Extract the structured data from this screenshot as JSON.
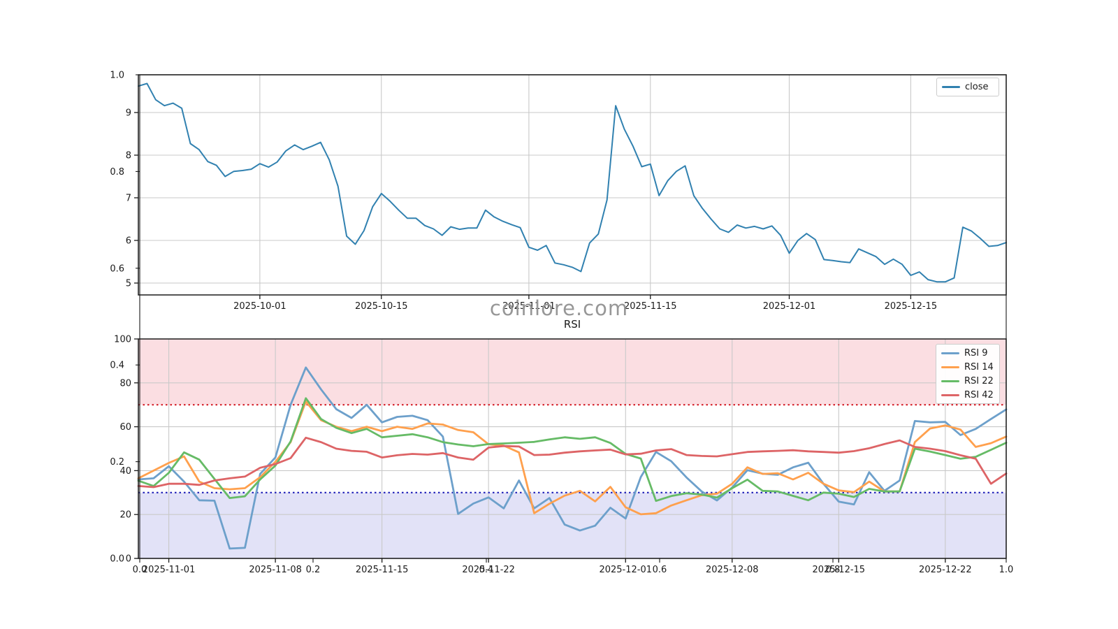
{
  "app": {
    "watermark": "coinlore.com"
  },
  "outer_axis": {
    "x_tick_labels": [
      "0.0",
      "0.2",
      "0.4",
      "0.6",
      "0.8",
      "1.0"
    ],
    "y_tick_labels": [
      "1.0",
      "0.8",
      "0.6",
      "0.4",
      "0.2",
      "0.0"
    ]
  },
  "colors": {
    "close": "#3181b0",
    "rsi9": "#6da0cb",
    "rsi14": "#ffa04d",
    "rsi22": "#66bb66",
    "rsi42": "#dd6466",
    "overbought_band": "#fbdee2",
    "oversold_band": "#e2e2f7",
    "overbought_line": "#d42029",
    "oversold_line": "#2121b8",
    "grid": "#c9c9c9",
    "spine": "#1a1a1a",
    "tick_text": "#1a1a1a",
    "watermark": "#979797"
  },
  "chart_data": [
    {
      "type": "line",
      "title": "",
      "panel": "price",
      "start_date": "2025-09-17",
      "frequency": "daily",
      "legend_position": "upper right",
      "grid": true,
      "ylim": [
        4.72,
        9.89
      ],
      "y_ticks": [
        9,
        8,
        7,
        6,
        5
      ],
      "x_ticks": [
        {
          "index": 14,
          "label": "2025-10-01"
        },
        {
          "index": 28,
          "label": "2025-10-15"
        },
        {
          "index": 45,
          "label": "2025-11-01"
        },
        {
          "index": 59,
          "label": "2025-11-15"
        },
        {
          "index": 75,
          "label": "2025-12-01"
        },
        {
          "index": 89,
          "label": "2025-12-15"
        }
      ],
      "series": [
        {
          "name": "close",
          "color_key": "close",
          "values": [
            9.62,
            9.68,
            9.3,
            9.16,
            9.22,
            9.1,
            8.27,
            8.13,
            7.85,
            7.76,
            7.5,
            7.62,
            7.64,
            7.67,
            7.8,
            7.72,
            7.84,
            8.1,
            8.24,
            8.13,
            8.21,
            8.3,
            7.89,
            7.27,
            6.1,
            5.91,
            6.23,
            6.79,
            7.1,
            6.92,
            6.71,
            6.52,
            6.52,
            6.35,
            6.27,
            6.12,
            6.32,
            6.26,
            6.29,
            6.29,
            6.71,
            6.55,
            6.45,
            6.37,
            6.3,
            5.84,
            5.77,
            5.88,
            5.47,
            5.43,
            5.37,
            5.27,
            5.94,
            6.15,
            6.95,
            9.16,
            8.61,
            8.21,
            7.73,
            7.79,
            7.05,
            7.4,
            7.62,
            7.75,
            7.05,
            6.75,
            6.5,
            6.27,
            6.19,
            6.36,
            6.29,
            6.33,
            6.27,
            6.34,
            6.12,
            5.7,
            6.0,
            6.16,
            6.02,
            5.55,
            5.53,
            5.5,
            5.48,
            5.8,
            5.71,
            5.62,
            5.44,
            5.56,
            5.44,
            5.18,
            5.26,
            5.08,
            5.03,
            5.03,
            5.12,
            6.31,
            6.22,
            6.05,
            5.86,
            5.88,
            5.95
          ]
        }
      ]
    },
    {
      "type": "line",
      "title": "RSI",
      "panel": "rsi",
      "start_date": "2025-10-30",
      "frequency": "daily",
      "legend_position": "upper right",
      "grid": true,
      "ylim": [
        0,
        100
      ],
      "y_ticks": [
        100,
        80,
        60,
        40,
        20,
        0
      ],
      "overbought_level": 70,
      "oversold_level": 30,
      "x_ticks": [
        {
          "index": 2,
          "label": "2025-11-01"
        },
        {
          "index": 9,
          "label": "2025-11-08"
        },
        {
          "index": 16,
          "label": "2025-11-15"
        },
        {
          "index": 23,
          "label": "2025-11-22"
        },
        {
          "index": 32,
          "label": "2025-12-01"
        },
        {
          "index": 39,
          "label": "2025-12-08"
        },
        {
          "index": 46,
          "label": "2025-12-15"
        },
        {
          "index": 53,
          "label": "2025-12-22"
        }
      ],
      "series": [
        {
          "name": "RSI 9",
          "color_key": "rsi9",
          "values": [
            36,
            36.5,
            42,
            35,
            26.5,
            26.3,
            4.5,
            4.8,
            38.5,
            46,
            70,
            87,
            77,
            68,
            64,
            70,
            62,
            64.5,
            65,
            63,
            55.5,
            20.3,
            25,
            27.8,
            22.8,
            35.5,
            22.8,
            27.5,
            15.4,
            12.7,
            14.9,
            23.1,
            18.2,
            37.1,
            48.5,
            44.3,
            36.9,
            30.5,
            26.4,
            32.3,
            40.2,
            38.6,
            38.1,
            41.5,
            43.6,
            34,
            25.9,
            24.6,
            39.3,
            30.8,
            35.5,
            62.6,
            62,
            62.2,
            56.2,
            59,
            63.5,
            67.9
          ]
        },
        {
          "name": "RSI 14",
          "color_key": "rsi14",
          "values": [
            36.5,
            40,
            43.5,
            46.5,
            35,
            32,
            31.5,
            32,
            37,
            44,
            53,
            71.5,
            63,
            60,
            58,
            60,
            58,
            60,
            59,
            61.5,
            61,
            58.5,
            57.5,
            52,
            51.4,
            48.3,
            20.6,
            24.9,
            28.6,
            30.8,
            26,
            32.6,
            23.3,
            20.1,
            20.6,
            24.1,
            26.5,
            28.8,
            29.5,
            34,
            41.5,
            38.5,
            38.8,
            36,
            39,
            34,
            31,
            30.2,
            35,
            30.5,
            30.5,
            53,
            59.2,
            60.6,
            58.7,
            50.8,
            52.5,
            55.5
          ]
        },
        {
          "name": "RSI 22",
          "color_key": "rsi22",
          "values": [
            35.4,
            33,
            39,
            48.3,
            45,
            36.2,
            27.5,
            28.3,
            36,
            42.3,
            53.3,
            73,
            63.5,
            59.5,
            57.1,
            59,
            55.2,
            55.9,
            56.6,
            55.2,
            53,
            51.9,
            51.1,
            52.1,
            52.4,
            52.7,
            53.1,
            54.2,
            55.2,
            54.5,
            55.2,
            52.6,
            47.6,
            45.5,
            26.2,
            28.4,
            29.7,
            29.1,
            27.7,
            32,
            35.9,
            30.8,
            30.5,
            28.5,
            26.5,
            30,
            29.5,
            28,
            31.7,
            30.5,
            30.5,
            50,
            48.7,
            47.1,
            45.4,
            46.3,
            49.5,
            52.7
          ]
        },
        {
          "name": "RSI 42",
          "color_key": "rsi42",
          "values": [
            33,
            32.5,
            34,
            34,
            33.5,
            35.5,
            36.5,
            37.3,
            41.3,
            43,
            45.7,
            55,
            53,
            50,
            49,
            48.6,
            46,
            47,
            47.6,
            47.3,
            48,
            46,
            45,
            50.5,
            51.2,
            51,
            47.1,
            47.3,
            48.2,
            48.8,
            49.2,
            49.6,
            47.4,
            47.7,
            49.2,
            49.8,
            47.1,
            46.7,
            46.5,
            47.5,
            48.5,
            48.8,
            49,
            49.3,
            48.8,
            48.5,
            48.2,
            48.9,
            50.2,
            52.1,
            53.8,
            50.8,
            50,
            48.9,
            47,
            45.4,
            34,
            38.7
          ]
        }
      ]
    }
  ]
}
